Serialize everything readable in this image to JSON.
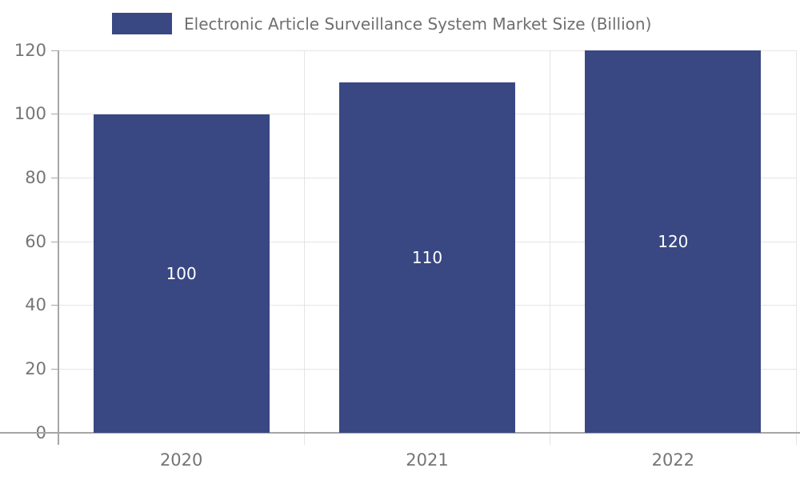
{
  "page": {
    "background": "#ffffff"
  },
  "legend": {
    "label": "Electronic Article Surveillance System Market Size (Billion)"
  },
  "chart_data": {
    "type": "bar",
    "title": "Electronic Article Surveillance System Market Size (Billion)",
    "categories": [
      "2020",
      "2021",
      "2022"
    ],
    "values": [
      100,
      110,
      120
    ],
    "bar_labels": [
      "100",
      "110",
      "120"
    ],
    "series": [
      {
        "name": "Electronic Article Surveillance System Market Size (Billion)",
        "values": [
          100,
          110,
          120
        ]
      }
    ],
    "xlabel": "",
    "ylabel": "",
    "ylim": [
      0,
      120
    ],
    "yticks": [
      0,
      20,
      40,
      60,
      80,
      100,
      120
    ],
    "grid": true,
    "legend_position": "top",
    "colors": {
      "bar": "#394883",
      "grid": "#e4e4e4",
      "axis": "#a6a6a6",
      "tick_label": "#757575",
      "title": "#6f6f6f",
      "bar_label": "#ffffff"
    }
  }
}
